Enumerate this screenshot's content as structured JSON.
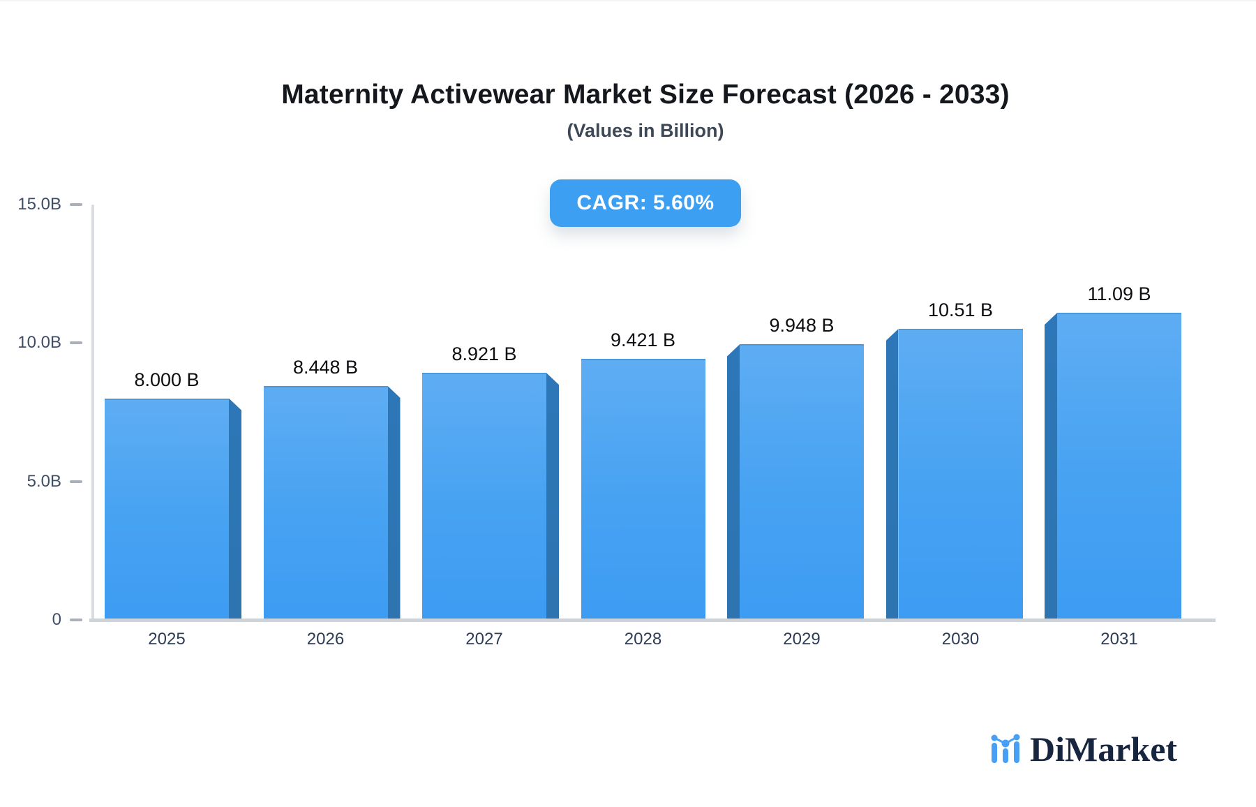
{
  "header": {
    "title": "Maternity Activewear Market Size Forecast (2026 - 2033)",
    "subtitle": "(Values in Billion)",
    "cagr_label": "CAGR: 5.60%"
  },
  "chart_data": {
    "type": "bar",
    "title": "Maternity Activewear Market Size Forecast (2026 - 2033)",
    "subtitle": "(Values in Billion)",
    "categories": [
      "2025",
      "2026",
      "2027",
      "2028",
      "2029",
      "2030",
      "2031"
    ],
    "values": [
      8.0,
      8.448,
      8.921,
      9.421,
      9.948,
      10.51,
      11.09
    ],
    "value_labels": [
      "8.000 B",
      "8.448 B",
      "8.921 B",
      "9.421 B",
      "9.948 B",
      "10.51 B",
      "11.09 B"
    ],
    "unit": "Billion",
    "ylim": [
      0,
      15
    ],
    "y_ticks": [
      {
        "label": "15.0B",
        "value": 15
      },
      {
        "label": "10.0B",
        "value": 10
      },
      {
        "label": "5.0B",
        "value": 5
      },
      {
        "label": "0",
        "value": 0
      }
    ],
    "grid": false,
    "legend": "none",
    "annotation": "CAGR: 5.60%"
  },
  "colors": {
    "badge_bg": "#3d9ff2",
    "bar_face_top": "#5eadf3",
    "bar_face_bottom": "#3d9cf2",
    "bar_side": "#2d77b8",
    "axis_line": "#d9dce1",
    "baseline": "#ced3da",
    "tick_dash": "#a9b0b8",
    "y_label": "#3f4e66",
    "x_label": "#2e3d56",
    "value_label": "#0c0e11",
    "logo_icon": "#47a0f5",
    "logo_text": "#18253f"
  },
  "logo": {
    "text": "DiMarket",
    "icon": "bar-line-chart-icon"
  }
}
